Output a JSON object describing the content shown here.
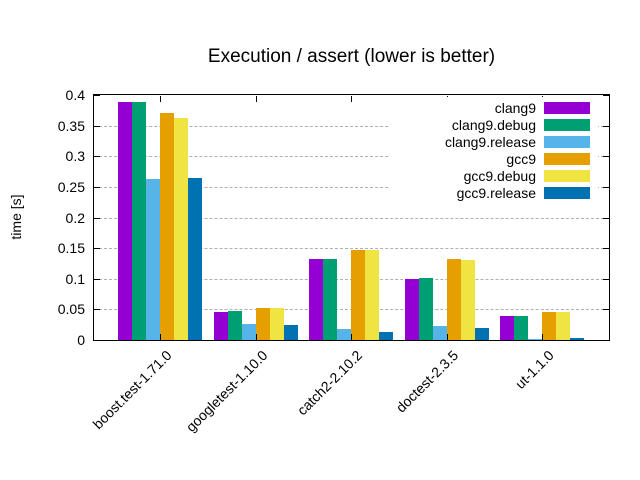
{
  "chart_data": {
    "type": "bar",
    "title": "Execution / assert (lower is better)",
    "xlabel": "",
    "ylabel": "time [s]",
    "ylim": [
      0,
      0.4
    ],
    "ytick_step": 0.05,
    "ytick_labels": [
      "0",
      "0.05",
      "0.1",
      "0.15",
      "0.2",
      "0.25",
      "0.3",
      "0.35",
      "0.4"
    ],
    "grid": "horizontal dashed gridlines at each 0.05, none at top border",
    "legend_position": "top-right inside plot, opaque white background",
    "categories": [
      "boost.test-1.71.0",
      "googletest-1.10.0",
      "catch2-2.10.2",
      "doctest-2.3.5",
      "ut-1.1.0"
    ],
    "series": [
      {
        "name": "clang9",
        "color": "#9400d3",
        "values": [
          0.388,
          0.045,
          0.132,
          0.1,
          0.039
        ]
      },
      {
        "name": "clang9.debug",
        "color": "#009e73",
        "values": [
          0.388,
          0.048,
          0.132,
          0.102,
          0.039
        ]
      },
      {
        "name": "clang9.release",
        "color": "#56b4e9",
        "values": [
          0.263,
          0.026,
          0.018,
          0.023,
          0.002
        ]
      },
      {
        "name": "gcc9",
        "color": "#e69f00",
        "values": [
          0.37,
          0.052,
          0.147,
          0.133,
          0.045
        ]
      },
      {
        "name": "gcc9.debug",
        "color": "#f0e442",
        "values": [
          0.363,
          0.052,
          0.147,
          0.131,
          0.045
        ]
      },
      {
        "name": "gcc9.release",
        "color": "#0072b2",
        "values": [
          0.264,
          0.025,
          0.013,
          0.019,
          0.003
        ]
      }
    ],
    "colors": {
      "axis": "#000000",
      "gridline": "#b0b0b0",
      "background": "#ffffff",
      "text": "#000000"
    }
  }
}
